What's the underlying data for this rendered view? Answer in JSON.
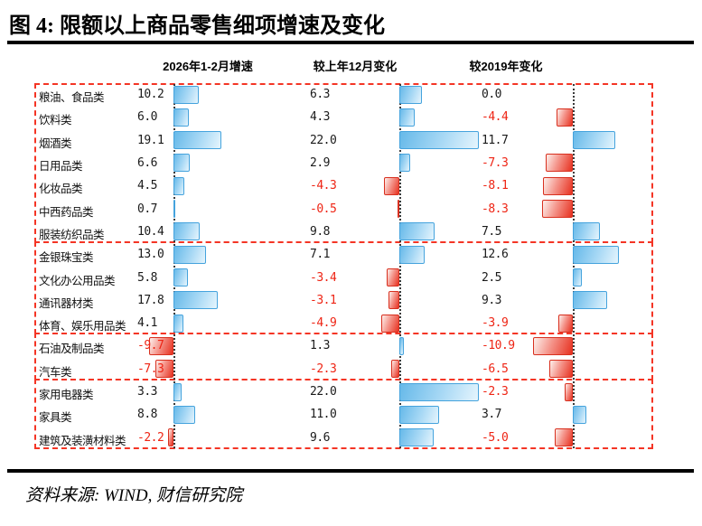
{
  "figure": {
    "title": "图 4: 限额以上商品零售细项增速及变化",
    "source": "资料来源: WIND, 财信研究院"
  },
  "chart_data": {
    "type": "bar",
    "orientation": "horizontal",
    "value_unit": "percent",
    "grid": false,
    "legend_position": "none",
    "columns": [
      "2026年1-2月增速",
      "较上年12月变化",
      "较2019年变化"
    ],
    "categories": [
      "粮油、食品类",
      "饮料类",
      "烟酒类",
      "日用品类",
      "化妆品类",
      "中西药品类",
      "服装纺织品类",
      "金银珠宝类",
      "文化办公用品类",
      "通讯器材类",
      "体育、娱乐用品类",
      "石油及制品类",
      "汽车类",
      "家用电器类",
      "家具类",
      "建筑及装潢材料类"
    ],
    "series": [
      {
        "name": "2026年1-2月增速",
        "values": [
          10.2,
          6.0,
          19.1,
          6.6,
          4.5,
          0.7,
          10.4,
          13.0,
          5.8,
          17.8,
          4.1,
          -9.7,
          -7.3,
          3.3,
          8.8,
          -2.2
        ]
      },
      {
        "name": "较上年12月变化",
        "values": [
          6.3,
          4.3,
          22.0,
          2.9,
          -4.3,
          -0.5,
          9.8,
          7.1,
          -3.4,
          -3.1,
          -4.9,
          1.3,
          -2.3,
          22.0,
          11.0,
          9.6
        ]
      },
      {
        "name": "较2019年变化",
        "values": [
          0.0,
          -4.4,
          11.7,
          -7.3,
          -8.1,
          -8.3,
          7.5,
          12.6,
          2.5,
          9.3,
          -3.9,
          -10.9,
          -6.5,
          -2.3,
          3.7,
          -5.0
        ]
      }
    ],
    "row_groups": [
      7,
      4,
      2,
      3
    ],
    "positive_bar_color": "#5fb5e8",
    "negative_bar_color": "#e73120",
    "positive_text_color": "#1a1a1a",
    "negative_text_color": "#ee2414",
    "group_border_color": "#f43525"
  }
}
